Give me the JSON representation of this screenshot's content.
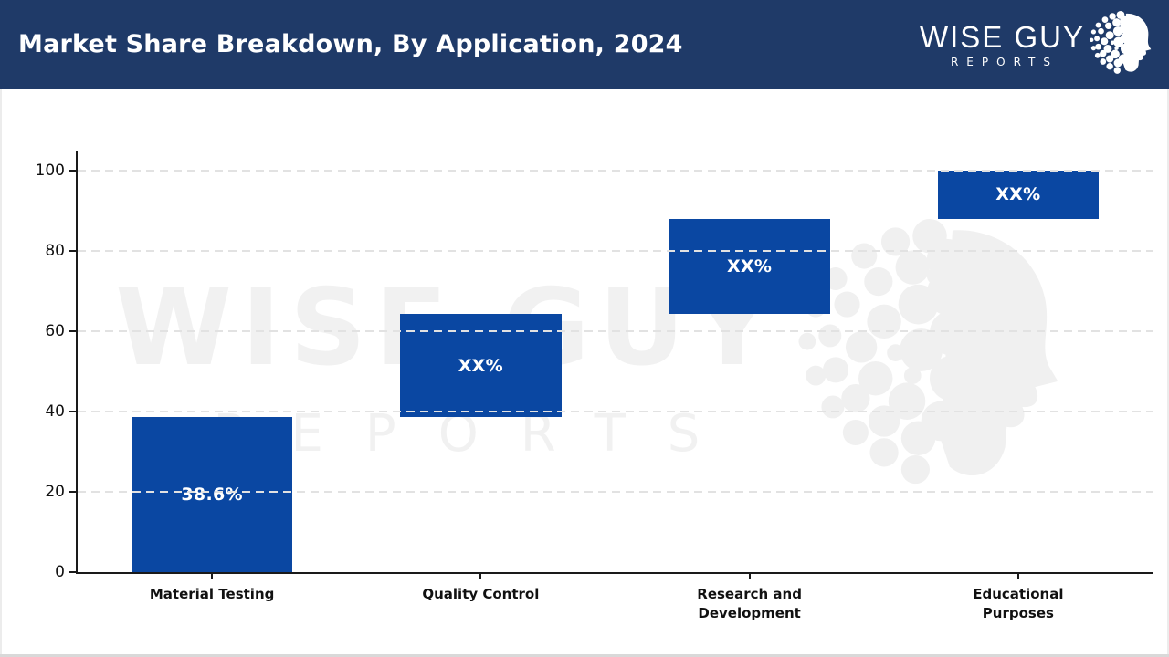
{
  "header": {
    "title": "Market Share Breakdown, By Application, 2024",
    "brand": {
      "name": "WISE GUY",
      "sub": "REPORTS",
      "head_icon": "wiseguy-head-dots-icon"
    }
  },
  "watermark": {
    "line1": "WISE GUY",
    "line2": "REPORTS",
    "head_icon": "wiseguy-head-dots-watermark-icon"
  },
  "colors": {
    "header_bg": "#1f3a68",
    "bar": "#0a47a2",
    "bar_label": "#ffffff",
    "axis": "#1a1a1a",
    "tick_label": "#111111",
    "gridline": "#e2e2e2",
    "watermark": "#f1f1f1",
    "background": "#ffffff"
  },
  "chart_data": {
    "type": "bar",
    "variant": "waterfall",
    "title": "Market Share Breakdown, By Application, 2024",
    "categories": [
      "Material Testing",
      "Quality Control",
      "Research and\nDevelopment",
      "Educational\nPurposes"
    ],
    "segments": [
      {
        "category": "Material Testing",
        "start": 0,
        "end": 38.6,
        "label": "38.6%"
      },
      {
        "category": "Quality Control",
        "start": 38.6,
        "end": 64.3,
        "label": "XX%"
      },
      {
        "category": "Research and Development",
        "start": 64.3,
        "end": 88,
        "label": "XX%"
      },
      {
        "category": "Educational Purposes",
        "start": 88,
        "end": 100,
        "label": "XX%"
      }
    ],
    "yticks": [
      0,
      20,
      40,
      60,
      80,
      100
    ],
    "ylim": [
      0,
      105
    ],
    "xlabel": "",
    "ylabel": "",
    "grid": "dashed-horizontal",
    "legend": "none"
  }
}
